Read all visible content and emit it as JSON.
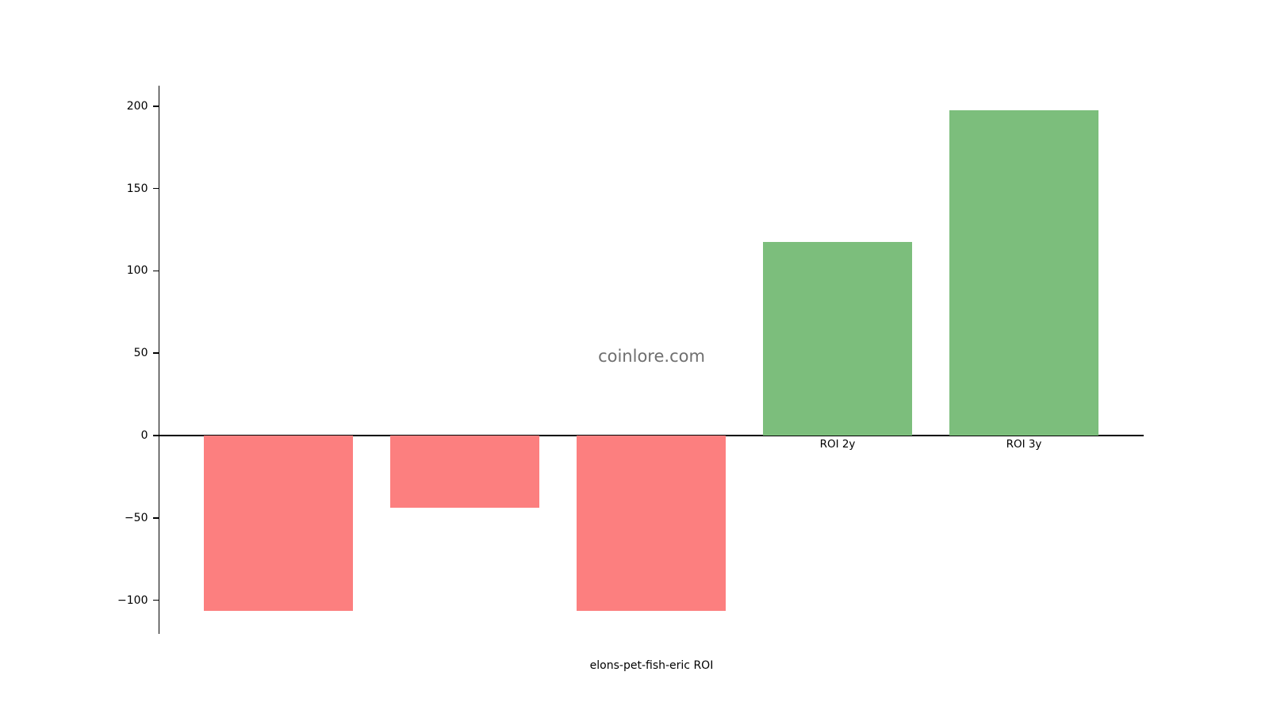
{
  "chart_data": {
    "type": "bar",
    "categories": [
      "",
      "",
      "",
      "ROI 2y",
      "ROI 3y"
    ],
    "values": [
      -106.4,
      -43.7,
      -106.4,
      117.3,
      197.3
    ],
    "series": [
      {
        "name": "ROI",
        "values": [
          -106.4,
          -43.7,
          -106.4,
          117.3,
          197.3
        ]
      }
    ],
    "bar_colors": [
      "#fc7f7f",
      "#fc7f7f",
      "#fc7f7f",
      "#7cbe7c",
      "#7cbe7c"
    ],
    "negative_color": "#fc7f7f",
    "positive_color": "#7cbe7c",
    "title": "",
    "xlabel": "elons-pet-fish-eric ROI",
    "ylabel": "",
    "yticks": [
      200,
      150,
      100,
      50,
      0,
      -50,
      -100
    ],
    "ytick_labels": [
      "200",
      "150",
      "100",
      "50",
      "0",
      "−50",
      "−100"
    ],
    "ylim": [
      -120,
      213
    ],
    "grid": false,
    "legend": null,
    "watermark": "coinlore.com",
    "axis_color": "#000000"
  }
}
